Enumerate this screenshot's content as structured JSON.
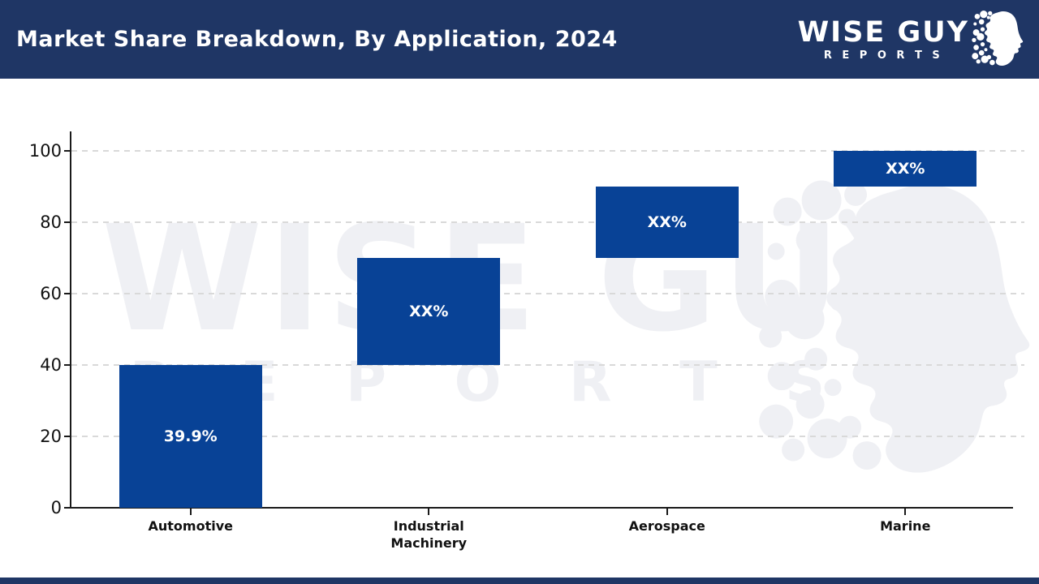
{
  "header": {
    "title": "Market Share Breakdown, By Application, 2024",
    "bg_color": "#1f3665",
    "text_color": "#ffffff",
    "logo": {
      "line1": "WISE GUY",
      "line2": "R E P O R T S"
    }
  },
  "watermark": {
    "line1": "WISE GUY",
    "line2": "R E P O R T S",
    "color": "#eff0f4"
  },
  "chart_data": {
    "type": "bar",
    "subtype": "waterfall",
    "title": "Market Share Breakdown, By Application, 2024",
    "categories": [
      "Automotive",
      "Industrial\nMachinery",
      "Aerospace",
      "Marine"
    ],
    "segments": [
      {
        "category": "Automotive",
        "start": 0,
        "end": 39.9,
        "value": 39.9,
        "label": "39.9%"
      },
      {
        "category": "Industrial\nMachinery",
        "start": 39.9,
        "end": 70,
        "value": 30.1,
        "label": "XX%"
      },
      {
        "category": "Aerospace",
        "start": 70,
        "end": 90,
        "value": 20,
        "label": "XX%"
      },
      {
        "category": "Marine",
        "start": 90,
        "end": 100,
        "value": 10,
        "label": "XX%"
      }
    ],
    "xlabel": "",
    "ylabel": "",
    "ylim": [
      0,
      100
    ],
    "yticks": [
      0,
      20,
      40,
      60,
      80,
      100
    ],
    "grid": "horizontal-dashed",
    "legend": "none",
    "bar_color": "#084296",
    "bar_label_color": "#ffffff",
    "grid_color": "#d9d9d9",
    "axis_color": "#1a1a1a"
  }
}
